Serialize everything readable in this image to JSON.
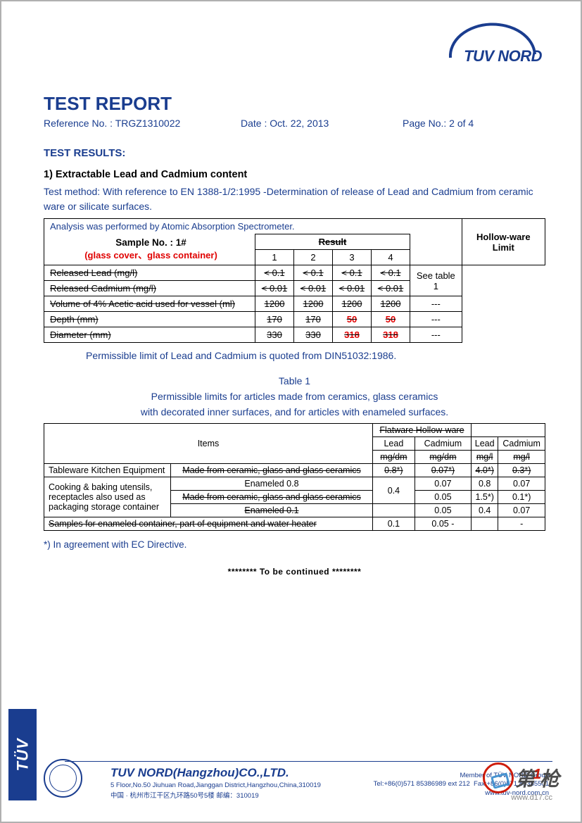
{
  "logo": {
    "brand": "TUV NORD"
  },
  "header": {
    "title": "TEST REPORT",
    "ref_label": "Reference No. : ",
    "ref_no": "TRGZ1310022",
    "date_label": "Date : ",
    "date": "Oct. 22, 2013",
    "page_label": "Page No.: ",
    "page": "2 of 4"
  },
  "section": {
    "results_h": "TEST RESULTS:",
    "item_h": "1) Extractable Lead and Cadmium content",
    "method": "Test method: With reference to EN 1388-1/2:1995 -Determination of release of Lead and Cadmium from ceramic ware or silicate surfaces.",
    "analysis_note": "Analysis was performed by Atomic Absorption Spectrometer."
  },
  "table1": {
    "sample_label": "Sample No. : 1#",
    "sample_desc": "(glass cover、glass container)",
    "result_h": "Result",
    "cols": [
      "1",
      "2",
      "3",
      "4"
    ],
    "limit_h": "Hollow-ware Limit",
    "rows": [
      {
        "label": "Released Lead (mg/l)",
        "vals": [
          "< 0.1",
          "< 0.1",
          "< 0.1",
          "< 0.1"
        ],
        "limit": "See table 1",
        "strike": true,
        "limit_span": 2
      },
      {
        "label": "Released Cadmium (mg/l)",
        "vals": [
          "< 0.01",
          "< 0.01",
          "< 0.01",
          "< 0.01"
        ],
        "limit": "",
        "strike": true
      },
      {
        "label": "Volume of 4% Acetic acid used for vessel (ml)",
        "vals": [
          "1200",
          "1200",
          "1200",
          "1200"
        ],
        "limit": "---",
        "strike": true
      },
      {
        "label": "Depth (mm)",
        "vals": [
          "170",
          "170",
          "50",
          "50"
        ],
        "red_idx": [
          2,
          3
        ],
        "limit": "---",
        "strike": true
      },
      {
        "label": "Diameter (mm)",
        "vals": [
          "330",
          "330",
          "318",
          "318"
        ],
        "red_idx": [
          2,
          3
        ],
        "limit": "---",
        "strike": true
      }
    ],
    "permissible_note": "Permissible limit of Lead and Cadmium is quoted from DIN51032:1986."
  },
  "table2": {
    "caption_title": "Table 1",
    "caption_l1": "Permissible limits for articles made from ceramics, glass ceramics",
    "caption_l2": "with decorated inner surfaces, and for articles with enameled surfaces.",
    "head": {
      "items": "Items",
      "group1": "Flatware",
      "group2": "Hollow-ware",
      "lead": "Lead",
      "cadmium": "Cadmium",
      "u1": "mg/dm",
      "u2": "mg/l"
    },
    "rows": [
      {
        "cat": "Tableware Kitchen Equipment",
        "sub": "Made from ceramic, glass and glass ceramics",
        "v": [
          "0.8*)",
          "0.07*)",
          "4.0*)",
          "0.3*)"
        ],
        "strike_sub": true,
        "strike_v": true
      },
      {
        "cat": "",
        "sub": "Enameled 0.8",
        "v": [
          "0.4",
          "0.07",
          "0.8",
          "0.07"
        ]
      },
      {
        "cat": "Cooking & baking utensils, receptacles also used as packaging storage container",
        "sub": "Made from ceramic, glass and glass ceramics",
        "v": [
          "",
          "0.05",
          "1.5*)",
          "0.1*)"
        ],
        "strike_sub": true
      },
      {
        "cat": "",
        "sub": "Enameled 0.1",
        "v": [
          "",
          "0.05",
          "0.4",
          "0.07"
        ],
        "strike_sub": true
      },
      {
        "cat": "Samples for enameled container, part of equipment and water heater",
        "sub": "",
        "v": [
          "0.1",
          "0.05 -",
          "",
          "-"
        ],
        "strike_cat": true
      }
    ],
    "footnote": "*) In agreement with EC Directive.",
    "continued": "******** To be continued ********"
  },
  "footer": {
    "badge": "TÜV",
    "company": "TUV NORD(Hangzhou)CO.,LTD.",
    "addr_en": "5 Floor,No.50 Jiuhuan Road,Jianggan District,Hangzhou,China,310019",
    "addr_cn": "中国 · 杭州市江干区九环路50号5楼     邮编：310019",
    "member": "Member of TÜV NORD Group",
    "tel": "Tel:+86(0)571 85386989 ext 212",
    "fax": "Fax:+86(0)571 85385501",
    "web": "www.tuv-nord.com.cn"
  },
  "watermark": {
    "txt1": "第",
    "one": "1",
    "txt2": "枪",
    "url": "www.d17.cc"
  },
  "colors": {
    "brand": "#1a3d8f",
    "red": "#e00000",
    "border": "#000000",
    "bg": "#ffffff"
  }
}
